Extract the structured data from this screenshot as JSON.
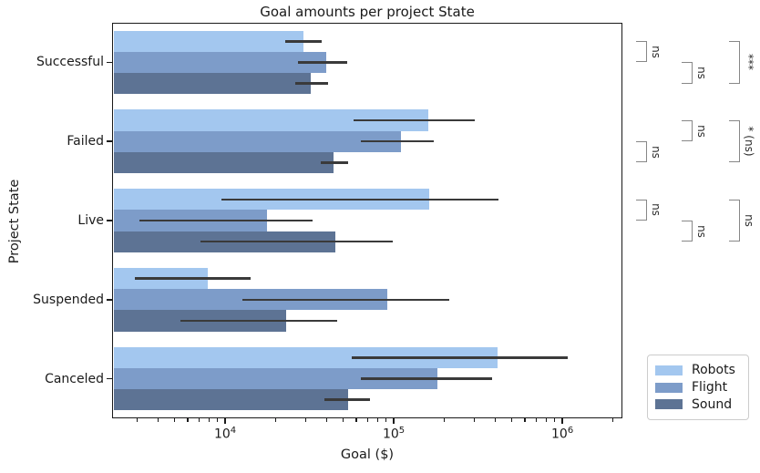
{
  "title": "Goal amounts per project State",
  "x_axis": {
    "label": "Goal ($)",
    "major_ticks": [
      10000,
      100000,
      1000000
    ]
  },
  "y_axis": {
    "label": "Project State"
  },
  "legend": {
    "items": [
      {
        "label": "Robots",
        "color": "#a3c7ef"
      },
      {
        "label": "Flight",
        "color": "#7d9cc9"
      },
      {
        "label": "Sound",
        "color": "#5d7394"
      }
    ]
  },
  "colors": {
    "error_bar": "#3a3a3a",
    "bracket": "#878787",
    "annotation_text": "#2b2b2b",
    "spine": "#1a1a1a"
  },
  "chart_data": {
    "type": "bar",
    "orientation": "horizontal",
    "x_scale": "log",
    "xlim": [
      2136,
      2270000
    ],
    "title": "Goal amounts per project State",
    "xlabel": "Goal ($)",
    "ylabel": "Project State",
    "legend_position": "lower right (outside axes)",
    "grid": false,
    "categories": [
      "Successful",
      "Failed",
      "Live",
      "Suspended",
      "Canceled"
    ],
    "series": [
      {
        "name": "Robots",
        "color": "#a3c7ef",
        "values": [
          29000,
          160000,
          162000,
          7900,
          413000
        ],
        "err_low": [
          22600,
          57800,
          9500,
          2900,
          56300
        ],
        "err_high": [
          37500,
          302700,
          419000,
          14200,
          1077000
        ]
      },
      {
        "name": "Flight",
        "color": "#7d9cc9",
        "values": [
          40000,
          110000,
          17700,
          91700,
          182000
        ],
        "err_low": [
          27000,
          63800,
          3100,
          12700,
          63800
        ],
        "err_high": [
          53000,
          173000,
          33000,
          214000,
          384000
        ]
      },
      {
        "name": "Sound",
        "color": "#5d7394",
        "values": [
          32200,
          44000,
          45100,
          23000,
          53700
        ],
        "err_low": [
          26100,
          37000,
          7100,
          5400,
          38800
        ],
        "err_high": [
          40800,
          53700,
          99000,
          46200,
          72300
        ]
      }
    ]
  },
  "significance_annotations": [
    {
      "category": "Successful",
      "pair": [
        "Robots",
        "Flight"
      ],
      "level": 0,
      "label": "ns"
    },
    {
      "category": "Successful",
      "pair": [
        "Flight",
        "Sound"
      ],
      "level": 1,
      "label": "ns"
    },
    {
      "category": "Successful",
      "pair": [
        "Robots",
        "Sound"
      ],
      "level": 2,
      "label": "***"
    },
    {
      "category": "Failed",
      "pair": [
        "Flight",
        "Sound"
      ],
      "level": 0,
      "label": "ns"
    },
    {
      "category": "Failed",
      "pair": [
        "Robots",
        "Flight"
      ],
      "level": 1,
      "label": "ns"
    },
    {
      "category": "Failed",
      "pair": [
        "Robots",
        "Sound"
      ],
      "level": 2,
      "label": "* (ns)"
    },
    {
      "category": "Live",
      "pair": [
        "Robots",
        "Flight"
      ],
      "level": 0,
      "label": "ns"
    },
    {
      "category": "Live",
      "pair": [
        "Flight",
        "Sound"
      ],
      "level": 1,
      "label": "ns"
    },
    {
      "category": "Live",
      "pair": [
        "Robots",
        "Sound"
      ],
      "level": 2,
      "label": "ns"
    }
  ]
}
